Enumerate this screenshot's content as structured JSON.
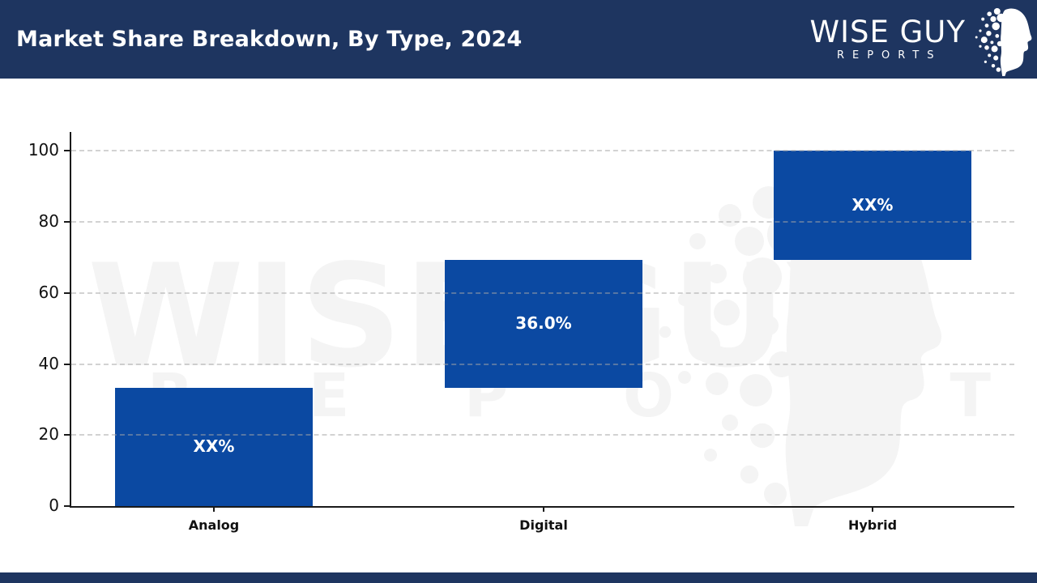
{
  "header": {
    "title": "Market Share Breakdown, By Type, 2024",
    "logo": {
      "wordmark": "WISE GUY",
      "subtext": "REPORTS"
    }
  },
  "watermark": {
    "line1": "WISE GUY",
    "line2": "R E P O R T S"
  },
  "chart_data": {
    "type": "bar",
    "variant": "floating-stacked-segments",
    "title": "Market Share Breakdown, By Type, 2024",
    "categories": [
      "Analog",
      "Digital",
      "Hybrid"
    ],
    "segments": [
      {
        "category": "Analog",
        "start": 0,
        "end": 33.3,
        "label": "XX%"
      },
      {
        "category": "Digital",
        "start": 33.3,
        "end": 69.3,
        "label": "36.0%"
      },
      {
        "category": "Hybrid",
        "start": 69.3,
        "end": 100,
        "label": "XX%"
      }
    ],
    "yticks": [
      0,
      20,
      40,
      60,
      80,
      100
    ],
    "ylim": [
      0,
      105.3
    ],
    "xlabel": "",
    "ylabel": "",
    "grid": "dashed-horizontal",
    "legend": "none"
  },
  "colors": {
    "header_navy": "#1e3560",
    "bar_blue": "#0b49a2",
    "grid_gray": "#d8d8d8",
    "watermark_gray": "#f4f4f4",
    "text_dark": "#111111",
    "label_white": "#ffffff"
  }
}
